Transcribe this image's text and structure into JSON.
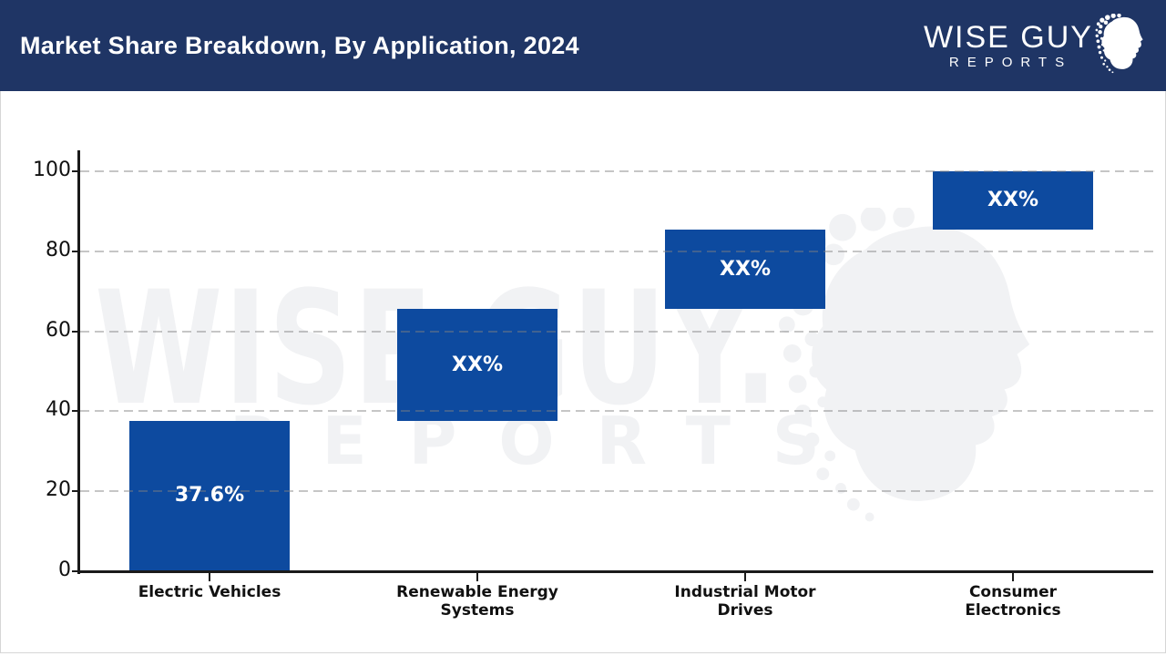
{
  "header": {
    "title": "Market Share Breakdown, By Application, 2024",
    "logo": {
      "primary": "WISE GUY",
      "secondary": "REPORTS"
    }
  },
  "watermark": {
    "line1": "WISE GUY.",
    "line2": "REPORTS"
  },
  "colors": {
    "background": "#ffffff",
    "header_bg": "#1f3565",
    "bar": "#0d4a9f",
    "bar_label": "#ffffff",
    "axis": "#1a1a1a",
    "tick_label": "#111111",
    "category_label": "#111111",
    "gridline": "rgba(128,128,128,0.45)",
    "watermark": "#f1f2f4",
    "page_border": "#d6d6d6"
  },
  "chart_data": {
    "type": "bar",
    "subtype": "floating-waterfall",
    "title": "Market Share Breakdown, By Application, 2024",
    "categories": [
      "Electric Vehicles",
      "Renewable Energy Systems",
      "Industrial Motor Drives",
      "Consumer Electronics"
    ],
    "segments": [
      {
        "category": "Electric Vehicles",
        "from": 0,
        "to": 37.6,
        "label": "37.6%"
      },
      {
        "category": "Renewable Energy Systems",
        "from": 37.6,
        "to": 65.5,
        "label": "XX%"
      },
      {
        "category": "Industrial Motor Drives",
        "from": 65.5,
        "to": 85.5,
        "label": "XX%"
      },
      {
        "category": "Consumer Electronics",
        "from": 85.5,
        "to": 100,
        "label": "XX%"
      }
    ],
    "segment_sizes": [
      37.6,
      27.9,
      20.0,
      14.5
    ],
    "xlabel": "",
    "ylabel": "",
    "yticks": [
      0,
      20,
      40,
      60,
      80,
      100
    ],
    "ylim": [
      0,
      105
    ],
    "grid": "horizontal-dashed",
    "legend": "none",
    "bar_color": "#0d4a9f"
  }
}
